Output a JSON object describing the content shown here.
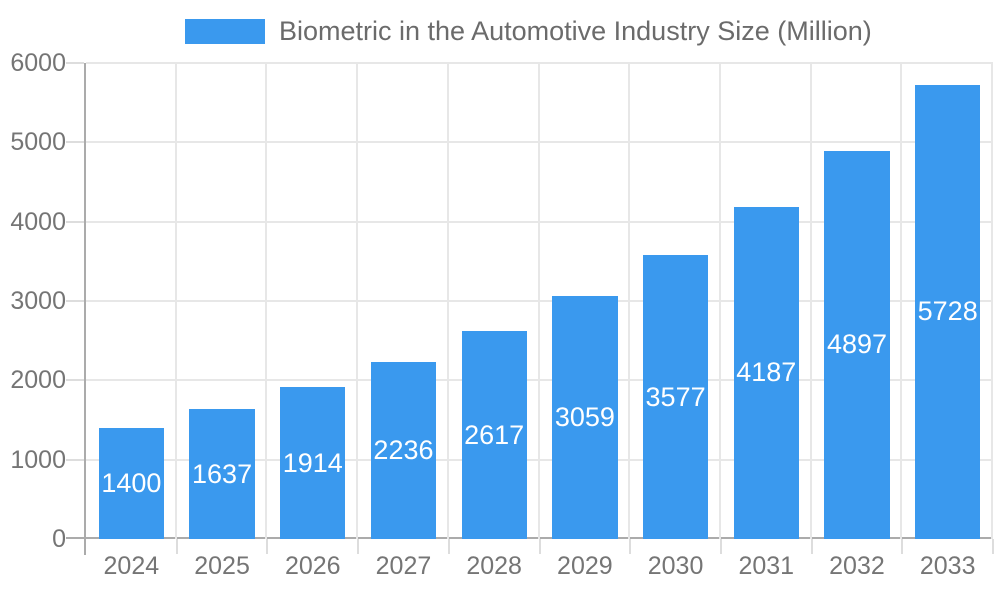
{
  "legend": {
    "series_label": "Biometric in the Automotive Industry Size (Million)"
  },
  "chart_data": {
    "type": "bar",
    "title": "Biometric in the Automotive Industry Size (Million)",
    "categories": [
      "2024",
      "2025",
      "2026",
      "2027",
      "2028",
      "2029",
      "2030",
      "2031",
      "2032",
      "2033"
    ],
    "values": [
      1400,
      1637,
      1914,
      2236,
      2617,
      3059,
      3577,
      4187,
      4897,
      5728
    ],
    "xlabel": "",
    "ylabel": "",
    "ylim": [
      0,
      6000
    ],
    "yticks": [
      0,
      1000,
      2000,
      3000,
      4000,
      5000,
      6000
    ],
    "grid": true,
    "legend_position": "top",
    "colors": {
      "bar": "#3A99EE",
      "bar_label_text": "#FFFFFF",
      "axis_text": "#757575",
      "legend_text": "#6B6B6B",
      "gridline": "#E7E7E7",
      "axis_line": "#ABABAB",
      "tick": "#DDDDDD",
      "background": "#FFFFFF"
    }
  }
}
